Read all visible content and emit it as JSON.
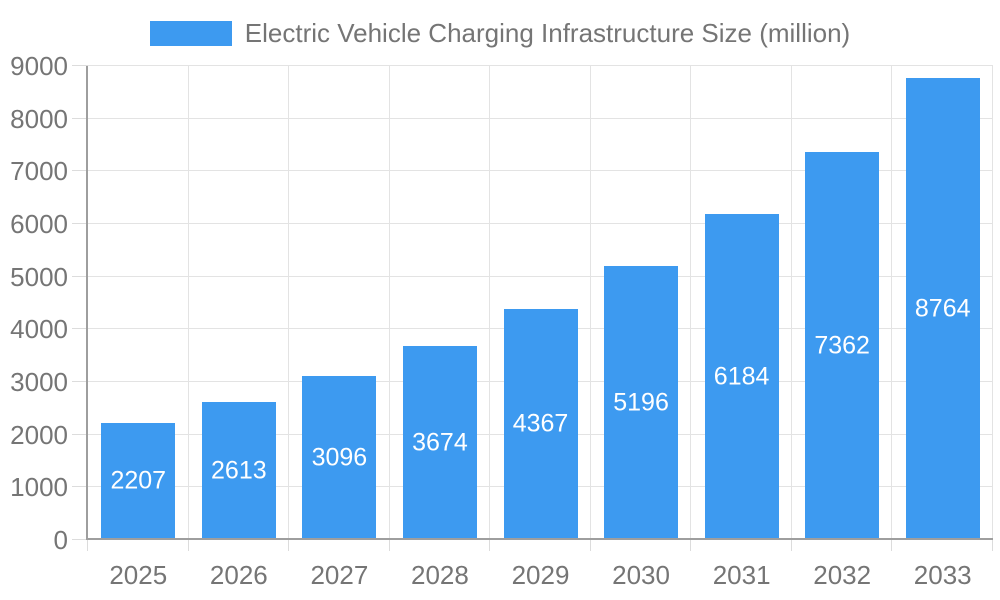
{
  "legend": {
    "label": "Electric Vehicle Charging Infrastructure Size (million)"
  },
  "chart_data": {
    "type": "bar",
    "title": "Electric Vehicle Charging Infrastructure Size (million)",
    "categories": [
      "2025",
      "2026",
      "2027",
      "2028",
      "2029",
      "2030",
      "2031",
      "2032",
      "2033"
    ],
    "values": [
      2207,
      2613,
      3096,
      3674,
      4367,
      5196,
      6184,
      7362,
      8764
    ],
    "xlabel": "",
    "ylabel": "",
    "ylim": [
      0,
      9000
    ],
    "ytick_step": 1000,
    "yticks": [
      0,
      1000,
      2000,
      3000,
      4000,
      5000,
      6000,
      7000,
      8000,
      9000
    ],
    "grid": true,
    "legend_position": "top",
    "value_labels": "inside-center",
    "colors": {
      "bar": "#3d9af0",
      "axis_text": "#757575",
      "gridline": "#e3e3e3",
      "tick": "#dcdcdc",
      "axis_line": "#9e9e9e",
      "value_label": "#ffffff",
      "background": "#ffffff"
    }
  }
}
